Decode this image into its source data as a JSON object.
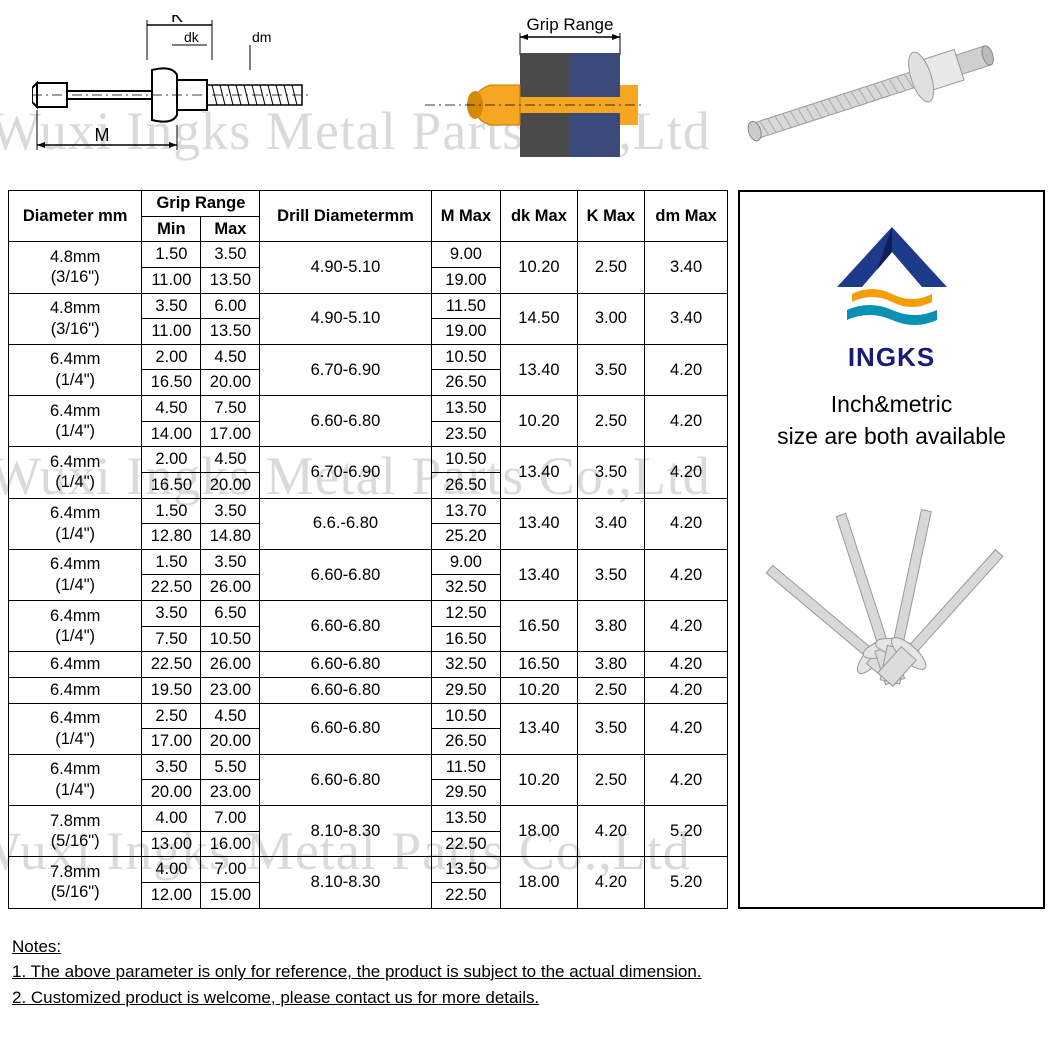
{
  "watermark": "Wuxi Ingks Metal Parts Co.,Ltd",
  "diagrams": {
    "left_labels": {
      "K": "K",
      "dk": "dk",
      "dm": "dm",
      "M": "M"
    },
    "center_label": "Grip Range"
  },
  "table": {
    "headers": {
      "diameter": "Diameter mm",
      "grip": "Grip Range",
      "grip_min": "Min",
      "grip_max": "Max",
      "drill": "Drill Diametermm",
      "m_max": "M Max",
      "dk_max": "dk Max",
      "k_max": "K Max",
      "dm_max": "dm Max"
    },
    "rows": [
      {
        "dia": "4.8mm (3/16\")",
        "g1min": "1.50",
        "g1max": "3.50",
        "g2min": "11.00",
        "g2max": "13.50",
        "drill": "4.90-5.10",
        "m1": "9.00",
        "m2": "19.00",
        "dk": "10.20",
        "k": "2.50",
        "dm": "3.40"
      },
      {
        "dia": "4.8mm (3/16\")",
        "g1min": "3.50",
        "g1max": "6.00",
        "g2min": "11.00",
        "g2max": "13.50",
        "drill": "4.90-5.10",
        "m1": "11.50",
        "m2": "19.00",
        "dk": "14.50",
        "k": "3.00",
        "dm": "3.40"
      },
      {
        "dia": "6.4mm (1/4\")",
        "g1min": "2.00",
        "g1max": "4.50",
        "g2min": "16.50",
        "g2max": "20.00",
        "drill": "6.70-6.90",
        "m1": "10.50",
        "m2": "26.50",
        "dk": "13.40",
        "k": "3.50",
        "dm": "4.20"
      },
      {
        "dia": "6.4mm (1/4\")",
        "g1min": "4.50",
        "g1max": "7.50",
        "g2min": "14.00",
        "g2max": "17.00",
        "drill": "6.60-6.80",
        "m1": "13.50",
        "m2": "23.50",
        "dk": "10.20",
        "k": "2.50",
        "dm": "4.20"
      },
      {
        "dia": "6.4mm (1/4\")",
        "g1min": "2.00",
        "g1max": "4.50",
        "g2min": "16.50",
        "g2max": "20.00",
        "drill": "6.70-6.90",
        "m1": "10.50",
        "m2": "26.50",
        "dk": "13.40",
        "k": "3.50",
        "dm": "4.20"
      },
      {
        "dia": "6.4mm (1/4\")",
        "g1min": "1.50",
        "g1max": "3.50",
        "g2min": "12.80",
        "g2max": "14.80",
        "drill": "6.6.-6.80",
        "m1": "13.70",
        "m2": "25.20",
        "dk": "13.40",
        "k": "3.40",
        "dm": "4.20"
      },
      {
        "dia": "6.4mm (1/4\")",
        "g1min": "1.50",
        "g1max": "3.50",
        "g2min": "22.50",
        "g2max": "26.00",
        "drill": "6.60-6.80",
        "m1": "9.00",
        "m2": "32.50",
        "dk": "13.40",
        "k": "3.50",
        "dm": "4.20"
      },
      {
        "dia": "6.4mm (1/4\")",
        "g1min": "3.50",
        "g1max": "6.50",
        "g2min": "7.50",
        "g2max": "10.50",
        "drill": "6.60-6.80",
        "m1": "12.50",
        "m2": "16.50",
        "dk": "16.50",
        "k": "3.80",
        "dm": "4.20"
      },
      {
        "dia": "6.4mm",
        "single": true,
        "g1min": "22.50",
        "g1max": "26.00",
        "drill": "6.60-6.80",
        "m1": "32.50",
        "dk": "16.50",
        "k": "3.80",
        "dm": "4.20"
      },
      {
        "dia": "6.4mm",
        "single": true,
        "g1min": "19.50",
        "g1max": "23.00",
        "drill": "6.60-6.80",
        "m1": "29.50",
        "dk": "10.20",
        "k": "2.50",
        "dm": "4.20"
      },
      {
        "dia": "6.4mm (1/4\")",
        "g1min": "2.50",
        "g1max": "4.50",
        "g2min": "17.00",
        "g2max": "20.00",
        "drill": "6.60-6.80",
        "m1": "10.50",
        "m2": "26.50",
        "dk": "13.40",
        "k": "3.50",
        "dm": "4.20"
      },
      {
        "dia": "6.4mm (1/4\")",
        "g1min": "3.50",
        "g1max": "5.50",
        "g2min": "20.00",
        "g2max": "23.00",
        "drill": "6.60-6.80",
        "m1": "11.50",
        "m2": "29.50",
        "dk": "10.20",
        "k": "2.50",
        "dm": "4.20"
      },
      {
        "dia": "7.8mm (5/16\")",
        "g1min": "4.00",
        "g1max": "7.00",
        "g2min": "13.00",
        "g2max": "16.00",
        "drill": "8.10-8.30",
        "m1": "13.50",
        "m2": "22.50",
        "dk": "18.00",
        "k": "4.20",
        "dm": "5.20"
      },
      {
        "dia": "7.8mm (5/16\")",
        "g1min": "4.00",
        "g1max": "7.00",
        "g2min": "12.00",
        "g2max": "15.00",
        "drill": "8.10-8.30",
        "m1": "13.50",
        "m2": "22.50",
        "dk": "18.00",
        "k": "4.20",
        "dm": "5.20"
      }
    ]
  },
  "side": {
    "brand": "INGKS",
    "line1": "Inch&metric",
    "line2": "size are both available",
    "logo_colors": {
      "triangle": "#1e3a8a",
      "wave_top": "#f59e0b",
      "wave_bottom": "#0891b2"
    }
  },
  "notes": {
    "title": "Notes:",
    "n1": "1. The above parameter is only for reference, the product is subject to the actual dimension.",
    "n2": "2. Customized product is welcome, please contact us for more details."
  }
}
